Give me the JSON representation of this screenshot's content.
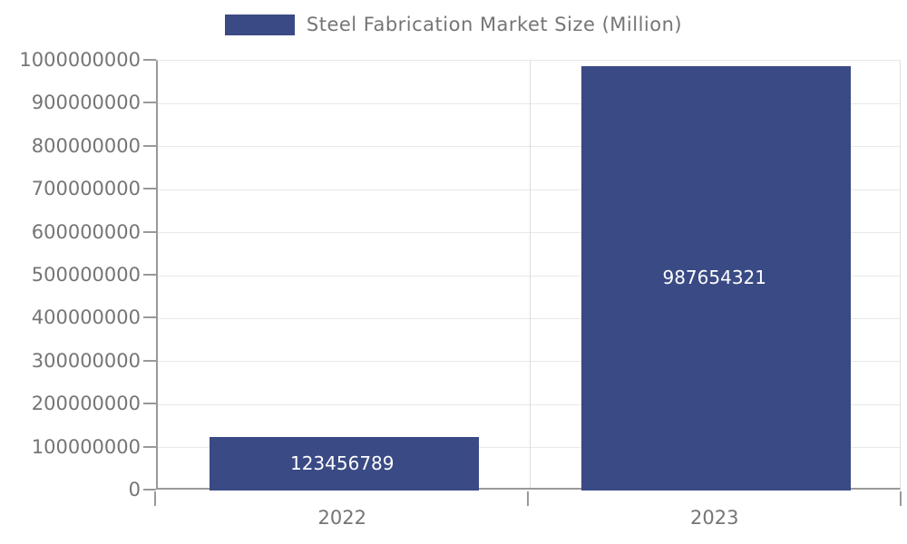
{
  "chart_data": {
    "type": "bar",
    "legend": "Steel Fabrication Market Size (Million)",
    "legend_position": "top-center",
    "categories": [
      "2022",
      "2023"
    ],
    "values": [
      123456789,
      987654321
    ],
    "value_labels": [
      "123456789",
      "987654321"
    ],
    "value_label_position": "inside-center",
    "xlabel": "",
    "ylabel": "",
    "ylim": [
      0,
      1000000000
    ],
    "yticks": [
      0,
      100000000,
      200000000,
      300000000,
      400000000,
      500000000,
      600000000,
      700000000,
      800000000,
      900000000,
      1000000000
    ],
    "grid": true,
    "colors": {
      "bar": "#3A4A84",
      "axis_line": "#999999",
      "grid_line": "#E8E8E8",
      "vertical_split_line": "#DDDDDD",
      "tick_label": "#757575",
      "legend_text": "#757575",
      "value_label": "#FFFFFF",
      "plot_right_border": "#E0E0E0",
      "background": "#FFFFFF"
    }
  }
}
